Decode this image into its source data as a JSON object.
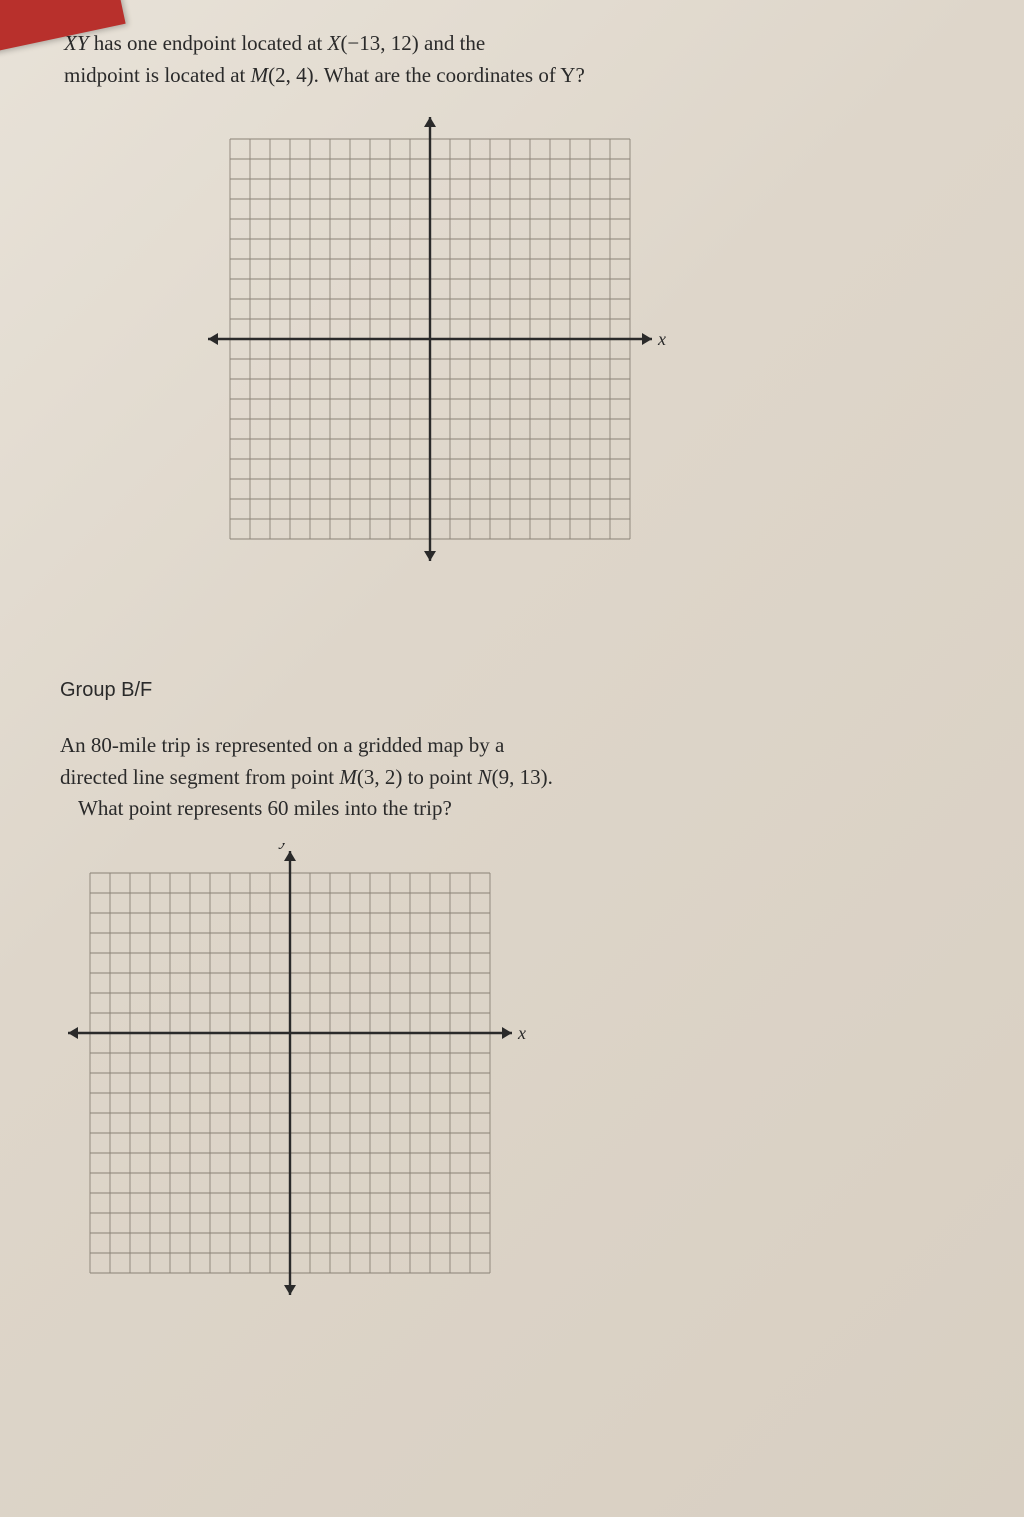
{
  "problem1": {
    "segment": "XY",
    "line1_prefix": " has one endpoint located at ",
    "pointX_label": "X",
    "pointX_coords": "(−13, 12)",
    "line1_suffix": " and the",
    "line2_prefix": "midpoint is located at ",
    "pointM_label": "M",
    "pointM_coords": "(2, 4)",
    "line2_suffix": ".  What are the coordinates of Y?"
  },
  "group_label": "Group B/F",
  "problem2": {
    "line1": "An 80-mile trip is represented on a gridded map by a",
    "line2_prefix": "directed line segment from point ",
    "pointM_label": "M",
    "pointM_coords": "(3, 2)",
    "line2_mid": " to point ",
    "pointN_label": "N",
    "pointN_coords": "(9, 13)",
    "line2_suffix": ".",
    "line3": "What point represents 60 miles into the trip?"
  },
  "grid1": {
    "cell": 20,
    "cols": 20,
    "rows": 20,
    "originCol": 10,
    "originRow": 10,
    "offsetX": 140,
    "offsetY": 0,
    "x_axis_label": "x",
    "y_axis_label": "",
    "grid_color": "#8a8276",
    "axis_color": "#2a2a2a",
    "axis_width": 2.4,
    "grid_width": 0.9,
    "arrow_size": 10
  },
  "grid2": {
    "cell": 20,
    "cols": 20,
    "rows": 20,
    "originCol": 10,
    "originRow": 8,
    "offsetX": 0,
    "offsetY": 0,
    "x_axis_label": "x",
    "y_axis_label": "y",
    "grid_color": "#8a8276",
    "axis_color": "#2a2a2a",
    "axis_width": 2.4,
    "grid_width": 0.9,
    "arrow_size": 10
  }
}
